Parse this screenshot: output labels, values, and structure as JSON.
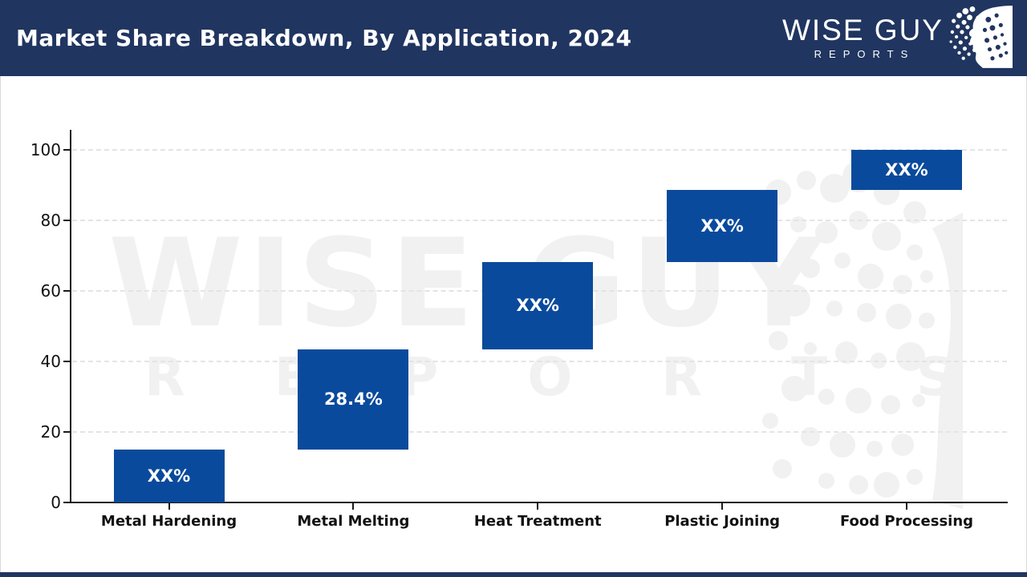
{
  "header": {
    "title": "Market Share Breakdown, By Application, 2024",
    "logo": {
      "line1": "WISE GUY",
      "line2": "REPORTS"
    },
    "background": "#203560"
  },
  "watermark": {
    "line1": "WISE GUY",
    "line2": "R E P O R T S"
  },
  "chart_data": {
    "type": "bar",
    "subtype": "waterfall",
    "title": "Market Share Breakdown, By Application, 2024",
    "categories": [
      "Metal Hardening",
      "Metal Melting",
      "Heat Treatment",
      "Plastic Joining",
      "Food Processing"
    ],
    "segments": [
      {
        "category": "Metal Hardening",
        "start": 0,
        "end": 15,
        "value": 15,
        "label": "XX%"
      },
      {
        "category": "Metal Melting",
        "start": 15,
        "end": 43.4,
        "value": 28.4,
        "label": "28.4%"
      },
      {
        "category": "Heat Treatment",
        "start": 43.4,
        "end": 68.2,
        "value": 24.8,
        "label": "XX%"
      },
      {
        "category": "Plastic Joining",
        "start": 68.2,
        "end": 88.6,
        "value": 20.4,
        "label": "XX%"
      },
      {
        "category": "Food Processing",
        "start": 88.6,
        "end": 100,
        "value": 11.4,
        "label": "XX%"
      }
    ],
    "yticks": [
      0,
      20,
      40,
      60,
      80,
      100
    ],
    "ylim": [
      0,
      105
    ],
    "grid": "horizontal-dashed",
    "legend": "none",
    "bar_color": "#0a4a9c",
    "bar_label_color": "#ffffff"
  }
}
